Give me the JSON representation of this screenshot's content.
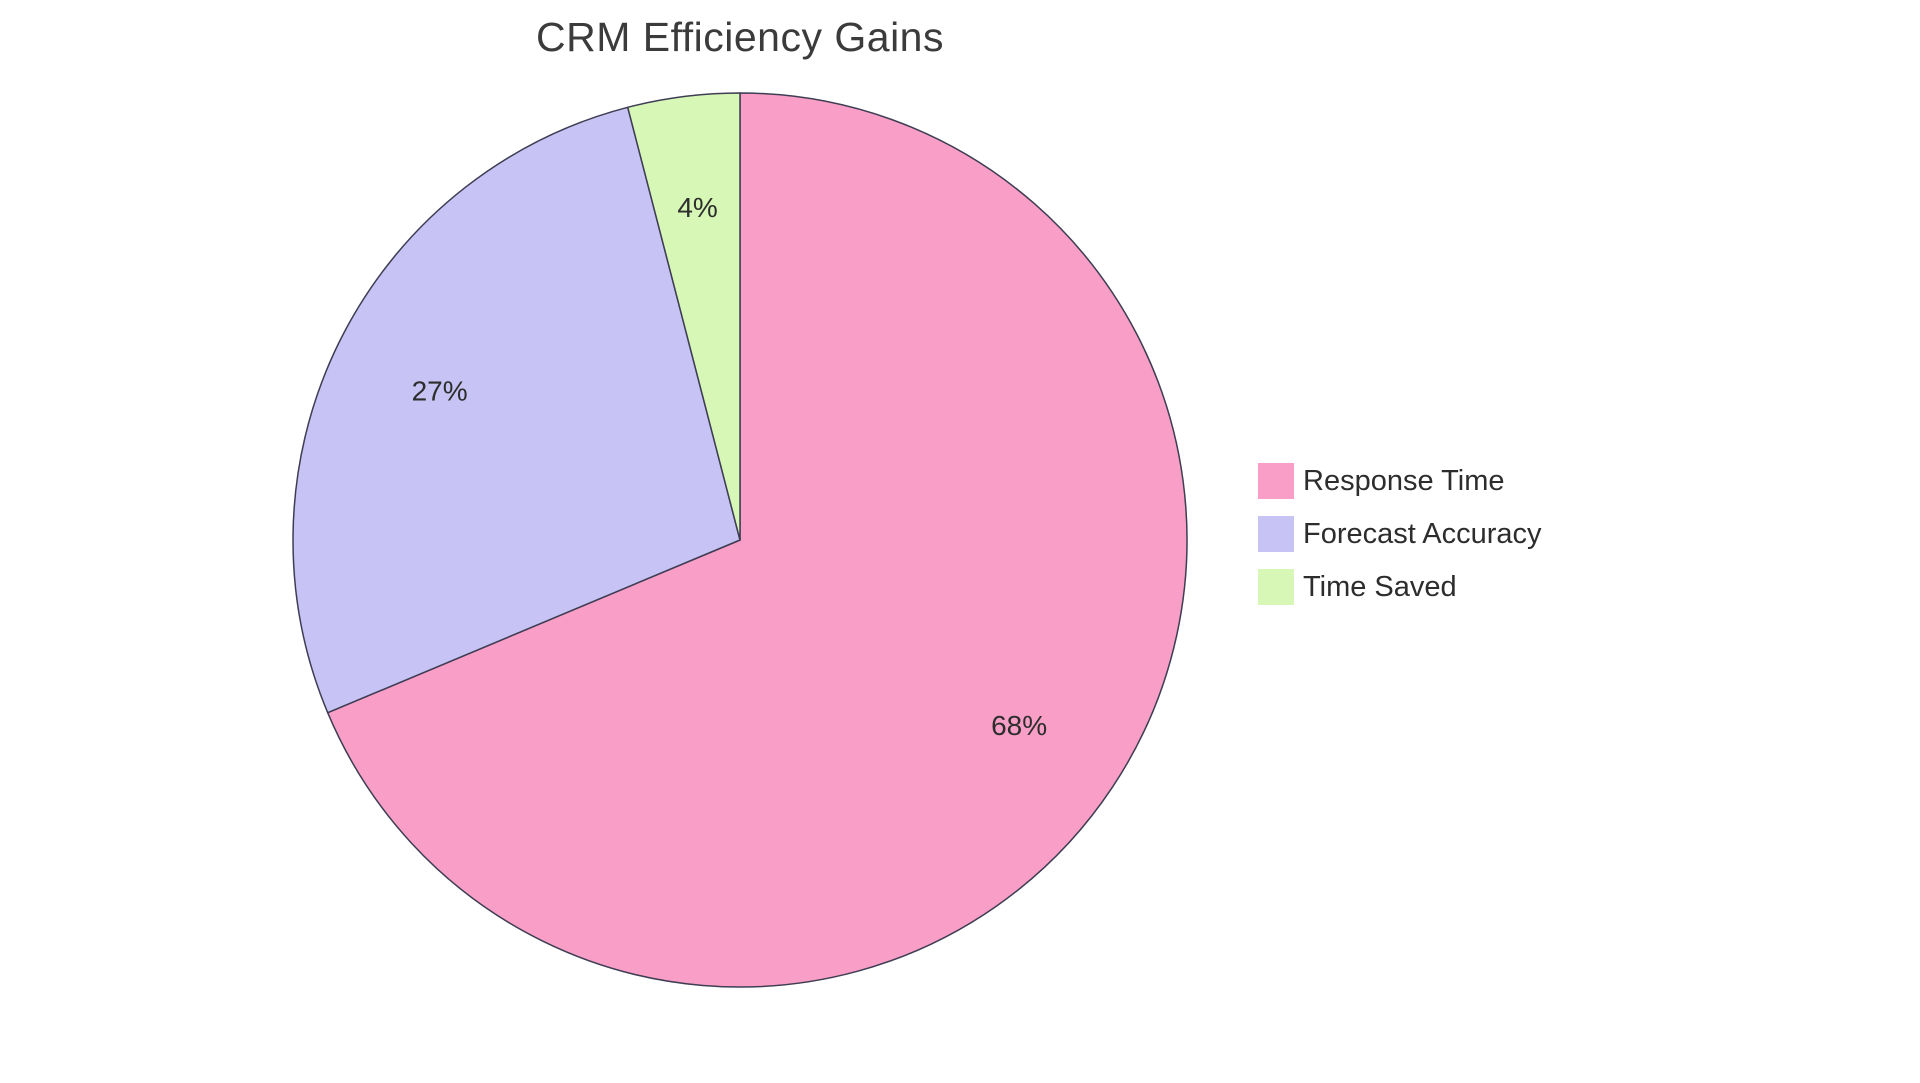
{
  "page": {
    "background": "#FFFFFF"
  },
  "chart_data": {
    "type": "pie",
    "title": "CRM Efficiency Gains",
    "labels": [
      "Response Time",
      "Forecast Accuracy",
      "Time Saved"
    ],
    "values": [
      68,
      27,
      4
    ],
    "value_labels": [
      "68%",
      "27%",
      "4%"
    ],
    "colors": [
      "#F99FC7",
      "#C7C3F4",
      "#D7F7B6"
    ],
    "slice_border_color": "#3E3D53",
    "slice_border_width": 1.5,
    "start_angle_deg": 0,
    "direction": "clockwise",
    "label_color": "#2D2D2D",
    "title_color": "#3B3B3B",
    "legend": {
      "position": "right",
      "entries": [
        "Response Time",
        "Forecast Accuracy",
        "Time Saved"
      ]
    }
  }
}
